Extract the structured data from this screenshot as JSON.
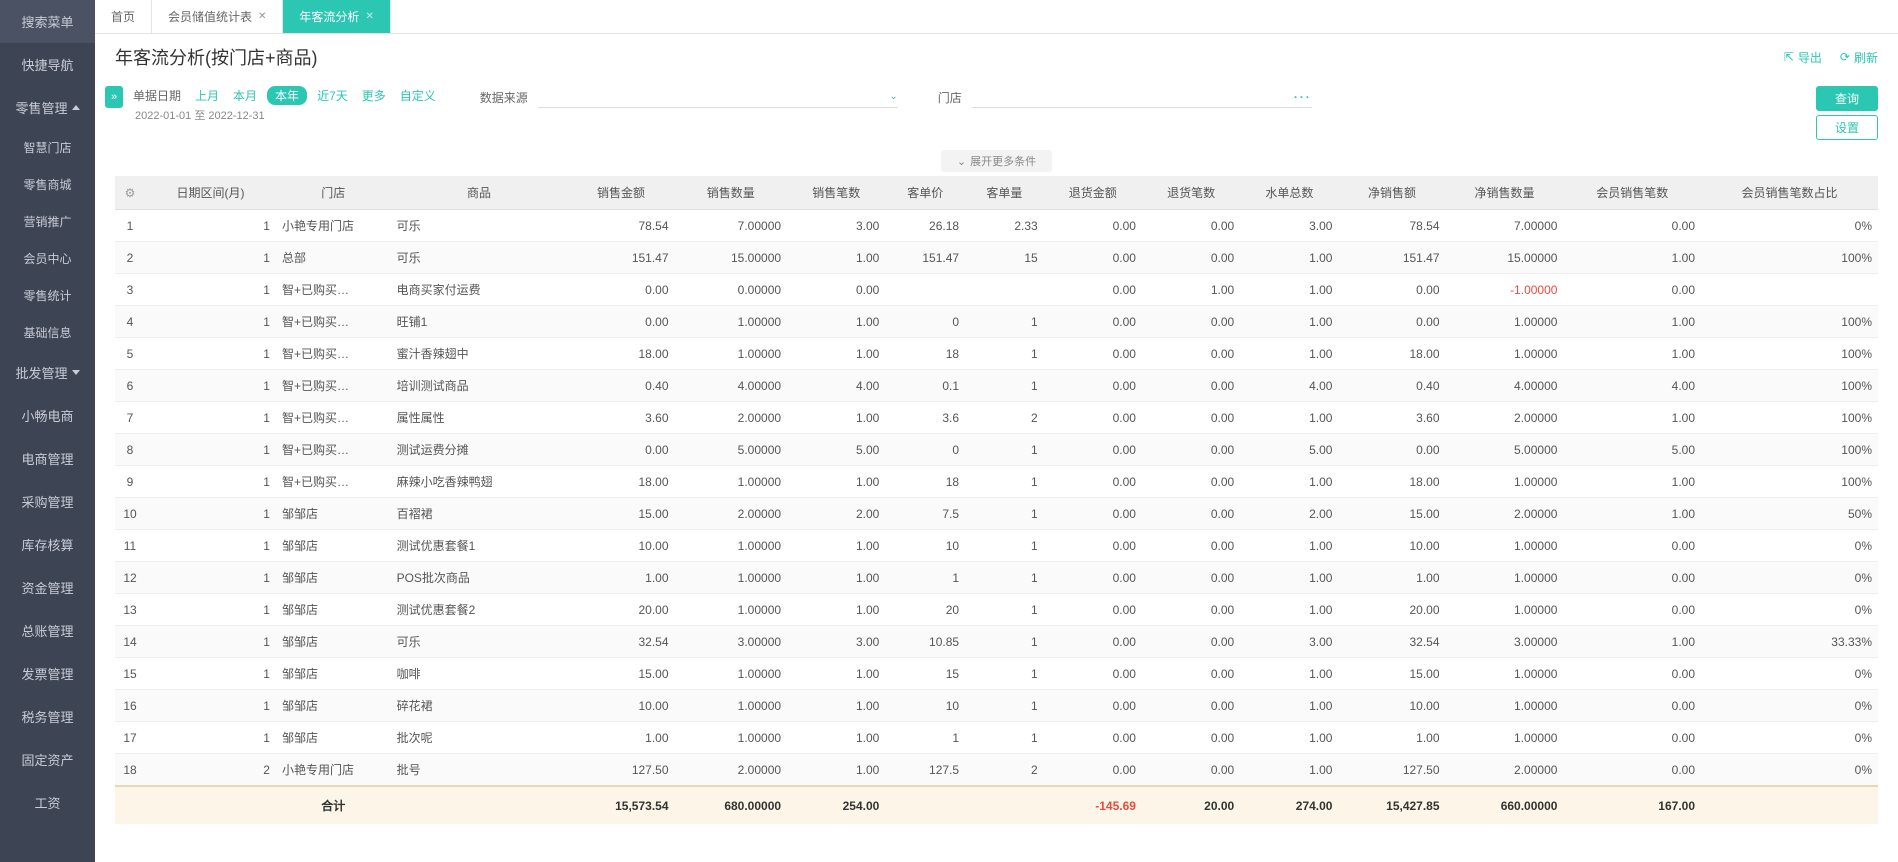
{
  "sidebar": {
    "items": [
      {
        "label": "搜索菜单",
        "type": "main"
      },
      {
        "label": "快捷导航",
        "type": "main"
      },
      {
        "label": "零售管理",
        "type": "main",
        "arrow": "up"
      },
      {
        "label": "智慧门店",
        "type": "sub"
      },
      {
        "label": "零售商城",
        "type": "sub"
      },
      {
        "label": "营销推广",
        "type": "sub"
      },
      {
        "label": "会员中心",
        "type": "sub"
      },
      {
        "label": "零售统计",
        "type": "sub"
      },
      {
        "label": "基础信息",
        "type": "sub"
      },
      {
        "label": "批发管理",
        "type": "main",
        "arrow": "down"
      },
      {
        "label": "小畅电商",
        "type": "main"
      },
      {
        "label": "电商管理",
        "type": "main"
      },
      {
        "label": "采购管理",
        "type": "main"
      },
      {
        "label": "库存核算",
        "type": "main"
      },
      {
        "label": "资金管理",
        "type": "main"
      },
      {
        "label": "总账管理",
        "type": "main"
      },
      {
        "label": "发票管理",
        "type": "main"
      },
      {
        "label": "税务管理",
        "type": "main"
      },
      {
        "label": "固定资产",
        "type": "main"
      },
      {
        "label": "工资",
        "type": "main"
      }
    ]
  },
  "tabs": [
    {
      "label": "首页",
      "closable": false,
      "active": false
    },
    {
      "label": "会员储值统计表",
      "closable": true,
      "active": false
    },
    {
      "label": "年客流分析",
      "closable": true,
      "active": true
    }
  ],
  "page": {
    "title": "年客流分析(按门店+商品)",
    "actions": {
      "export": "导出",
      "refresh": "刷新"
    }
  },
  "filter": {
    "date_label": "单据日期",
    "shortcuts": [
      "上月",
      "本月",
      "本年",
      "近7天",
      "更多",
      "自定义"
    ],
    "active_shortcut": "本年",
    "date_range": "2022-01-01 至 2022-12-31",
    "source_label": "数据来源",
    "store_label": "门店",
    "query_btn": "查询",
    "settings_btn": "设置",
    "expand_label": "展开更多条件"
  },
  "table": {
    "columns": [
      "日期区间(月)",
      "门店",
      "商品",
      "销售金额",
      "销售数量",
      "销售笔数",
      "客单价",
      "客单量",
      "退货金额",
      "退货笔数",
      "水单总数",
      "净销售额",
      "净销售数量",
      "会员销售笔数",
      "会员销售笔数占比"
    ],
    "rows": [
      {
        "n": 1,
        "period": "1",
        "store": "小艳专用门店",
        "product": "可乐",
        "amt": "78.54",
        "qty": "7.00000",
        "cnt": "3.00",
        "price": "26.18",
        "pqty": "2.33",
        "ramt": "0.00",
        "rcnt": "0.00",
        "total": "3.00",
        "net": "78.54",
        "netqty": "7.00000",
        "mcnt": "0.00",
        "mpct": "0%"
      },
      {
        "n": 2,
        "period": "1",
        "store": "总部",
        "product": "可乐",
        "amt": "151.47",
        "qty": "15.00000",
        "cnt": "1.00",
        "price": "151.47",
        "pqty": "15",
        "ramt": "0.00",
        "rcnt": "0.00",
        "total": "1.00",
        "net": "151.47",
        "netqty": "15.00000",
        "mcnt": "1.00",
        "mpct": "100%"
      },
      {
        "n": 3,
        "period": "1",
        "store": "智+已购买…",
        "product": "电商买家付运费",
        "amt": "0.00",
        "qty": "0.00000",
        "cnt": "0.00",
        "price": "",
        "pqty": "",
        "ramt": "0.00",
        "rcnt": "1.00",
        "total": "1.00",
        "net": "0.00",
        "netqty": "-1.00000",
        "neg_netqty": true,
        "mcnt": "0.00",
        "mpct": ""
      },
      {
        "n": 4,
        "period": "1",
        "store": "智+已购买…",
        "product": "旺铺1",
        "amt": "0.00",
        "qty": "1.00000",
        "cnt": "1.00",
        "price": "0",
        "pqty": "1",
        "ramt": "0.00",
        "rcnt": "0.00",
        "total": "1.00",
        "net": "0.00",
        "netqty": "1.00000",
        "mcnt": "1.00",
        "mpct": "100%"
      },
      {
        "n": 5,
        "period": "1",
        "store": "智+已购买…",
        "product": "蜜汁香辣翅中",
        "amt": "18.00",
        "qty": "1.00000",
        "cnt": "1.00",
        "price": "18",
        "pqty": "1",
        "ramt": "0.00",
        "rcnt": "0.00",
        "total": "1.00",
        "net": "18.00",
        "netqty": "1.00000",
        "mcnt": "1.00",
        "mpct": "100%"
      },
      {
        "n": 6,
        "period": "1",
        "store": "智+已购买…",
        "product": "培训测试商品",
        "amt": "0.40",
        "qty": "4.00000",
        "cnt": "4.00",
        "price": "0.1",
        "pqty": "1",
        "ramt": "0.00",
        "rcnt": "0.00",
        "total": "4.00",
        "net": "0.40",
        "netqty": "4.00000",
        "mcnt": "4.00",
        "mpct": "100%"
      },
      {
        "n": 7,
        "period": "1",
        "store": "智+已购买…",
        "product": "属性属性",
        "amt": "3.60",
        "qty": "2.00000",
        "cnt": "1.00",
        "price": "3.6",
        "pqty": "2",
        "ramt": "0.00",
        "rcnt": "0.00",
        "total": "1.00",
        "net": "3.60",
        "netqty": "2.00000",
        "mcnt": "1.00",
        "mpct": "100%"
      },
      {
        "n": 8,
        "period": "1",
        "store": "智+已购买…",
        "product": "测试运费分摊",
        "amt": "0.00",
        "qty": "5.00000",
        "cnt": "5.00",
        "price": "0",
        "pqty": "1",
        "ramt": "0.00",
        "rcnt": "0.00",
        "total": "5.00",
        "net": "0.00",
        "netqty": "5.00000",
        "mcnt": "5.00",
        "mpct": "100%"
      },
      {
        "n": 9,
        "period": "1",
        "store": "智+已购买…",
        "product": "麻辣小吃香辣鸭翅",
        "amt": "18.00",
        "qty": "1.00000",
        "cnt": "1.00",
        "price": "18",
        "pqty": "1",
        "ramt": "0.00",
        "rcnt": "0.00",
        "total": "1.00",
        "net": "18.00",
        "netqty": "1.00000",
        "mcnt": "1.00",
        "mpct": "100%"
      },
      {
        "n": 10,
        "period": "1",
        "store": "邹邹店",
        "product": "百褶裙",
        "amt": "15.00",
        "qty": "2.00000",
        "cnt": "2.00",
        "price": "7.5",
        "pqty": "1",
        "ramt": "0.00",
        "rcnt": "0.00",
        "total": "2.00",
        "net": "15.00",
        "netqty": "2.00000",
        "mcnt": "1.00",
        "mpct": "50%"
      },
      {
        "n": 11,
        "period": "1",
        "store": "邹邹店",
        "product": "测试优惠套餐1",
        "amt": "10.00",
        "qty": "1.00000",
        "cnt": "1.00",
        "price": "10",
        "pqty": "1",
        "ramt": "0.00",
        "rcnt": "0.00",
        "total": "1.00",
        "net": "10.00",
        "netqty": "1.00000",
        "mcnt": "0.00",
        "mpct": "0%"
      },
      {
        "n": 12,
        "period": "1",
        "store": "邹邹店",
        "product": "POS批次商品",
        "amt": "1.00",
        "qty": "1.00000",
        "cnt": "1.00",
        "price": "1",
        "pqty": "1",
        "ramt": "0.00",
        "rcnt": "0.00",
        "total": "1.00",
        "net": "1.00",
        "netqty": "1.00000",
        "mcnt": "0.00",
        "mpct": "0%"
      },
      {
        "n": 13,
        "period": "1",
        "store": "邹邹店",
        "product": "测试优惠套餐2",
        "amt": "20.00",
        "qty": "1.00000",
        "cnt": "1.00",
        "price": "20",
        "pqty": "1",
        "ramt": "0.00",
        "rcnt": "0.00",
        "total": "1.00",
        "net": "20.00",
        "netqty": "1.00000",
        "mcnt": "0.00",
        "mpct": "0%"
      },
      {
        "n": 14,
        "period": "1",
        "store": "邹邹店",
        "product": "可乐",
        "amt": "32.54",
        "qty": "3.00000",
        "cnt": "3.00",
        "price": "10.85",
        "pqty": "1",
        "ramt": "0.00",
        "rcnt": "0.00",
        "total": "3.00",
        "net": "32.54",
        "netqty": "3.00000",
        "mcnt": "1.00",
        "mpct": "33.33%"
      },
      {
        "n": 15,
        "period": "1",
        "store": "邹邹店",
        "product": "咖啡",
        "amt": "15.00",
        "qty": "1.00000",
        "cnt": "1.00",
        "price": "15",
        "pqty": "1",
        "ramt": "0.00",
        "rcnt": "0.00",
        "total": "1.00",
        "net": "15.00",
        "netqty": "1.00000",
        "mcnt": "0.00",
        "mpct": "0%"
      },
      {
        "n": 16,
        "period": "1",
        "store": "邹邹店",
        "product": "碎花裙",
        "amt": "10.00",
        "qty": "1.00000",
        "cnt": "1.00",
        "price": "10",
        "pqty": "1",
        "ramt": "0.00",
        "rcnt": "0.00",
        "total": "1.00",
        "net": "10.00",
        "netqty": "1.00000",
        "mcnt": "0.00",
        "mpct": "0%"
      },
      {
        "n": 17,
        "period": "1",
        "store": "邹邹店",
        "product": "批次呢",
        "amt": "1.00",
        "qty": "1.00000",
        "cnt": "1.00",
        "price": "1",
        "pqty": "1",
        "ramt": "0.00",
        "rcnt": "0.00",
        "total": "1.00",
        "net": "1.00",
        "netqty": "1.00000",
        "mcnt": "0.00",
        "mpct": "0%"
      },
      {
        "n": 18,
        "period": "2",
        "store": "小艳专用门店",
        "product": "批号",
        "amt": "127.50",
        "qty": "2.00000",
        "cnt": "1.00",
        "price": "127.5",
        "pqty": "2",
        "ramt": "0.00",
        "rcnt": "0.00",
        "total": "1.00",
        "net": "127.50",
        "netqty": "2.00000",
        "mcnt": "0.00",
        "mpct": "0%"
      }
    ],
    "totals": {
      "label": "合计",
      "amt": "15,573.54",
      "qty": "680.00000",
      "cnt": "254.00",
      "ramt": "-145.69",
      "rcnt": "20.00",
      "total": "274.00",
      "net": "15,427.85",
      "netqty": "660.00000",
      "mcnt": "167.00"
    }
  },
  "colors": {
    "primary": "#2cc7b2",
    "sidebar_bg": "#3d4454",
    "negative": "#e74c3c",
    "total_bg": "#fdf6e8"
  }
}
